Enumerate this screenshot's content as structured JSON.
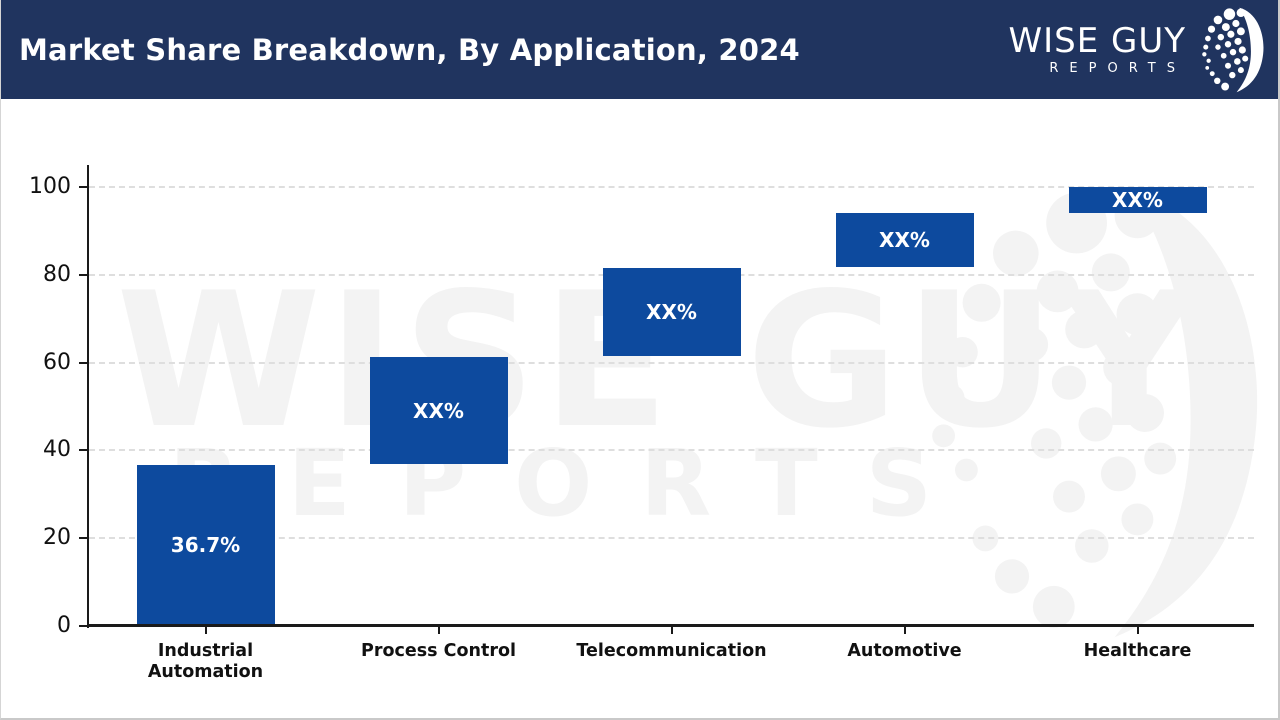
{
  "header": {
    "title": "Market Share Breakdown, By Application, 2024",
    "bg_color": "#20345f",
    "logo": {
      "line1": "WISE GUY",
      "line2": "REPORTS"
    }
  },
  "watermark": {
    "line1": "WISE GUY",
    "line2": "REPORTS"
  },
  "chart_data": {
    "type": "bar",
    "subtype": "waterfall",
    "title": "Market Share Breakdown, By Application, 2024",
    "categories": [
      "Industrial Automation",
      "Process Control",
      "Telecommunication",
      "Automotive",
      "Healthcare"
    ],
    "tick_labels": [
      "Industrial\nAutomation",
      "Process Control",
      "Telecommunication",
      "Automotive",
      "Healthcare"
    ],
    "segments": [
      {
        "category": "Industrial Automation",
        "start": 0,
        "end": 36.7,
        "label": "36.7%"
      },
      {
        "category": "Process Control",
        "start": 36.8,
        "end": 61.3,
        "label": "XX%"
      },
      {
        "category": "Telecommunication",
        "start": 61.4,
        "end": 81.6,
        "label": "XX%"
      },
      {
        "category": "Automotive",
        "start": 81.7,
        "end": 94.0,
        "label": "XX%"
      },
      {
        "category": "Healthcare",
        "start": 94.1,
        "end": 100,
        "label": "XX%"
      }
    ],
    "ylabel": "",
    "xlabel": "",
    "yticks": [
      0,
      20,
      40,
      60,
      80,
      100
    ],
    "ylim": [
      0,
      105
    ],
    "grid": "horizontal-dashed",
    "legend": "none",
    "bar_color": "#0d4a9e",
    "axis_color": "#1a1a1a",
    "grid_color": "#dedede"
  }
}
